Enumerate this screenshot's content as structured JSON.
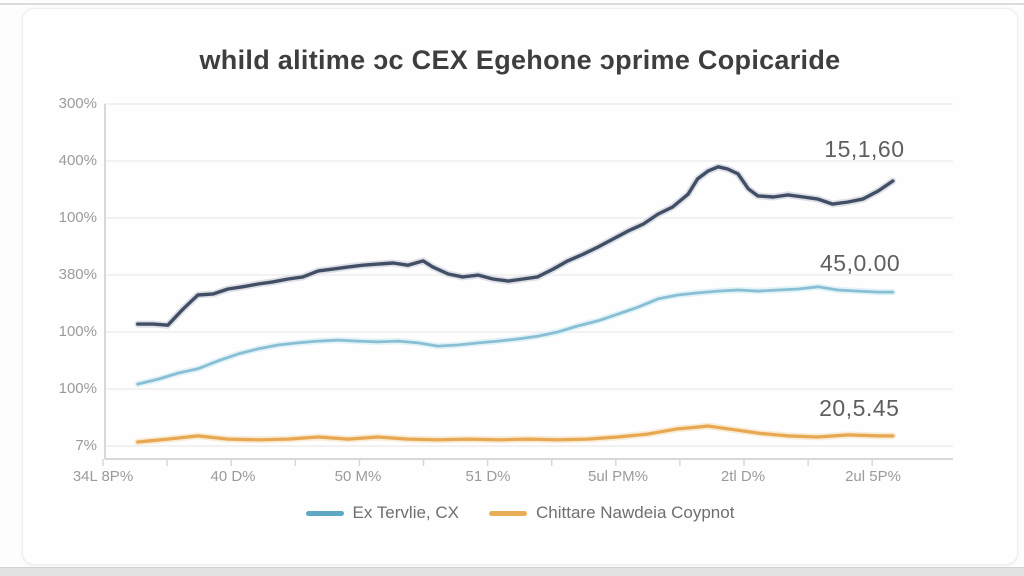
{
  "title": "whild alitime ɔc CEX Egehone ɔprime Copicaride",
  "colors": {
    "page_background": "#fdfdfd",
    "card_background": "#fefefe",
    "grid": "#eeeeee",
    "axis": "#d8d8d8",
    "tick_text": "#9b9b9b",
    "annotation_text": "#5f5f5f",
    "title_text": "#3e3e3e",
    "legend_text": "#6f6f6f"
  },
  "chart_data": {
    "type": "line",
    "title": "whild alitime ɔc CEX Egehone ɔprime Copicaride",
    "xlabel": "",
    "ylabel": "",
    "grid": "horizontal",
    "legend_position": "bottom-center",
    "value_scale_note": "source axis text is garbled; y values are percent of plot height (0 = x-axis, 100 = top gridline), x values are percent of plot width",
    "ylim": [
      0,
      100
    ],
    "y_tick_labels": [
      "300%",
      "400%",
      "100%",
      "380%",
      "100%",
      "100%",
      "7%"
    ],
    "x_tick_labels": [
      "34L 8P%",
      "40 D%",
      "50 M%",
      "51 D%",
      "5ul PM%",
      "2tl D%",
      "2ul 5P%"
    ],
    "annotations": [
      {
        "text": "15,1,60",
        "x": 89.7,
        "y": 87.3,
        "series": "dark"
      },
      {
        "text": "45,0.00",
        "x": 89.2,
        "y": 55.2,
        "series": "blue"
      },
      {
        "text": "20,5.45",
        "x": 89.1,
        "y": 14.4,
        "series": "orange"
      }
    ],
    "legend": [
      {
        "label": "Ex Tervlie, CX",
        "color": "#5fa8c4"
      },
      {
        "label": "Chittare Nawdeia Coypnot",
        "color": "#e9ad58"
      }
    ],
    "series": [
      {
        "name": "orange-line",
        "color": "#e7a851",
        "glow": "#f8e8cc",
        "width": 3.2,
        "points": [
          [
            5.2,
            4.8
          ],
          [
            8.7,
            5.6
          ],
          [
            12.2,
            6.5
          ],
          [
            15.7,
            5.6
          ],
          [
            19.2,
            5.4
          ],
          [
            22.7,
            5.6
          ],
          [
            26.2,
            6.2
          ],
          [
            29.7,
            5.6
          ],
          [
            33.1,
            6.2
          ],
          [
            36.6,
            5.6
          ],
          [
            40.1,
            5.4
          ],
          [
            43.6,
            5.6
          ],
          [
            47.1,
            5.4
          ],
          [
            50.6,
            5.6
          ],
          [
            54.1,
            5.4
          ],
          [
            57.5,
            5.6
          ],
          [
            61,
            6.2
          ],
          [
            64.5,
            7
          ],
          [
            68,
            8.5
          ],
          [
            70.3,
            9
          ],
          [
            71.5,
            9.3
          ],
          [
            73.8,
            8.5
          ],
          [
            77.3,
            7.3
          ],
          [
            80.8,
            6.5
          ],
          [
            84.3,
            6.2
          ],
          [
            87.8,
            6.8
          ],
          [
            91.3,
            6.5
          ],
          [
            93,
            6.5
          ]
        ]
      },
      {
        "name": "light-blue-line",
        "color": "#88bfd4",
        "glow": "#ddf1f7",
        "width": 2.8,
        "points": [
          [
            5.2,
            21.1
          ],
          [
            7.6,
            22.5
          ],
          [
            9.9,
            24.2
          ],
          [
            12.2,
            25.4
          ],
          [
            14.5,
            27.6
          ],
          [
            16.9,
            29.6
          ],
          [
            19.2,
            31
          ],
          [
            21.5,
            32.1
          ],
          [
            23.8,
            32.7
          ],
          [
            26.2,
            33.2
          ],
          [
            28.5,
            33.5
          ],
          [
            30.8,
            33.2
          ],
          [
            33.1,
            33
          ],
          [
            35.5,
            33.2
          ],
          [
            37.8,
            32.7
          ],
          [
            40.1,
            31.8
          ],
          [
            42.4,
            32.1
          ],
          [
            44.8,
            32.7
          ],
          [
            47.1,
            33.2
          ],
          [
            49.4,
            33.8
          ],
          [
            51.7,
            34.6
          ],
          [
            54.1,
            35.8
          ],
          [
            56.4,
            37.5
          ],
          [
            58.7,
            38.9
          ],
          [
            61,
            40.8
          ],
          [
            63.4,
            42.8
          ],
          [
            65.7,
            45.1
          ],
          [
            68,
            46.2
          ],
          [
            70.3,
            46.8
          ],
          [
            72.7,
            47.3
          ],
          [
            75,
            47.6
          ],
          [
            77.3,
            47.3
          ],
          [
            79.7,
            47.6
          ],
          [
            82,
            47.9
          ],
          [
            84.3,
            48.5
          ],
          [
            86.6,
            47.6
          ],
          [
            89,
            47.3
          ],
          [
            91.3,
            47
          ],
          [
            93,
            47
          ]
        ]
      },
      {
        "name": "dark-navy-line",
        "color": "#424e66",
        "glow": "#d7dae2",
        "width": 3.4,
        "points": [
          [
            5.2,
            38
          ],
          [
            7,
            38
          ],
          [
            8.7,
            37.7
          ],
          [
            10.5,
            42.3
          ],
          [
            12.2,
            46.2
          ],
          [
            14,
            46.5
          ],
          [
            15.7,
            47.9
          ],
          [
            17.4,
            48.5
          ],
          [
            19.2,
            49.3
          ],
          [
            20.9,
            49.9
          ],
          [
            22.7,
            50.7
          ],
          [
            24.4,
            51.3
          ],
          [
            26.2,
            53
          ],
          [
            27.9,
            53.5
          ],
          [
            29.7,
            54.1
          ],
          [
            31.4,
            54.6
          ],
          [
            33.1,
            54.9
          ],
          [
            34.9,
            55.2
          ],
          [
            36.6,
            54.6
          ],
          [
            38.4,
            55.8
          ],
          [
            39.5,
            54.1
          ],
          [
            41.3,
            52.1
          ],
          [
            43,
            51.3
          ],
          [
            44.8,
            51.8
          ],
          [
            46.5,
            50.7
          ],
          [
            48.3,
            50.1
          ],
          [
            50,
            50.7
          ],
          [
            51.7,
            51.3
          ],
          [
            53.5,
            53.5
          ],
          [
            55.2,
            55.8
          ],
          [
            57,
            57.7
          ],
          [
            58.7,
            59.7
          ],
          [
            60.5,
            62
          ],
          [
            62.2,
            64.2
          ],
          [
            64,
            66.2
          ],
          [
            65.7,
            69
          ],
          [
            67.4,
            71
          ],
          [
            69.2,
            74.6
          ],
          [
            70.3,
            78.9
          ],
          [
            71.5,
            81.1
          ],
          [
            72.7,
            82.3
          ],
          [
            73.8,
            81.7
          ],
          [
            75,
            80.3
          ],
          [
            76.2,
            76.1
          ],
          [
            77.3,
            74.1
          ],
          [
            79.1,
            73.8
          ],
          [
            80.8,
            74.4
          ],
          [
            82.6,
            73.8
          ],
          [
            84.3,
            73.2
          ],
          [
            86,
            71.8
          ],
          [
            87.8,
            72.4
          ],
          [
            89.5,
            73.2
          ],
          [
            91.3,
            75.5
          ],
          [
            93,
            78.3
          ]
        ]
      }
    ]
  }
}
